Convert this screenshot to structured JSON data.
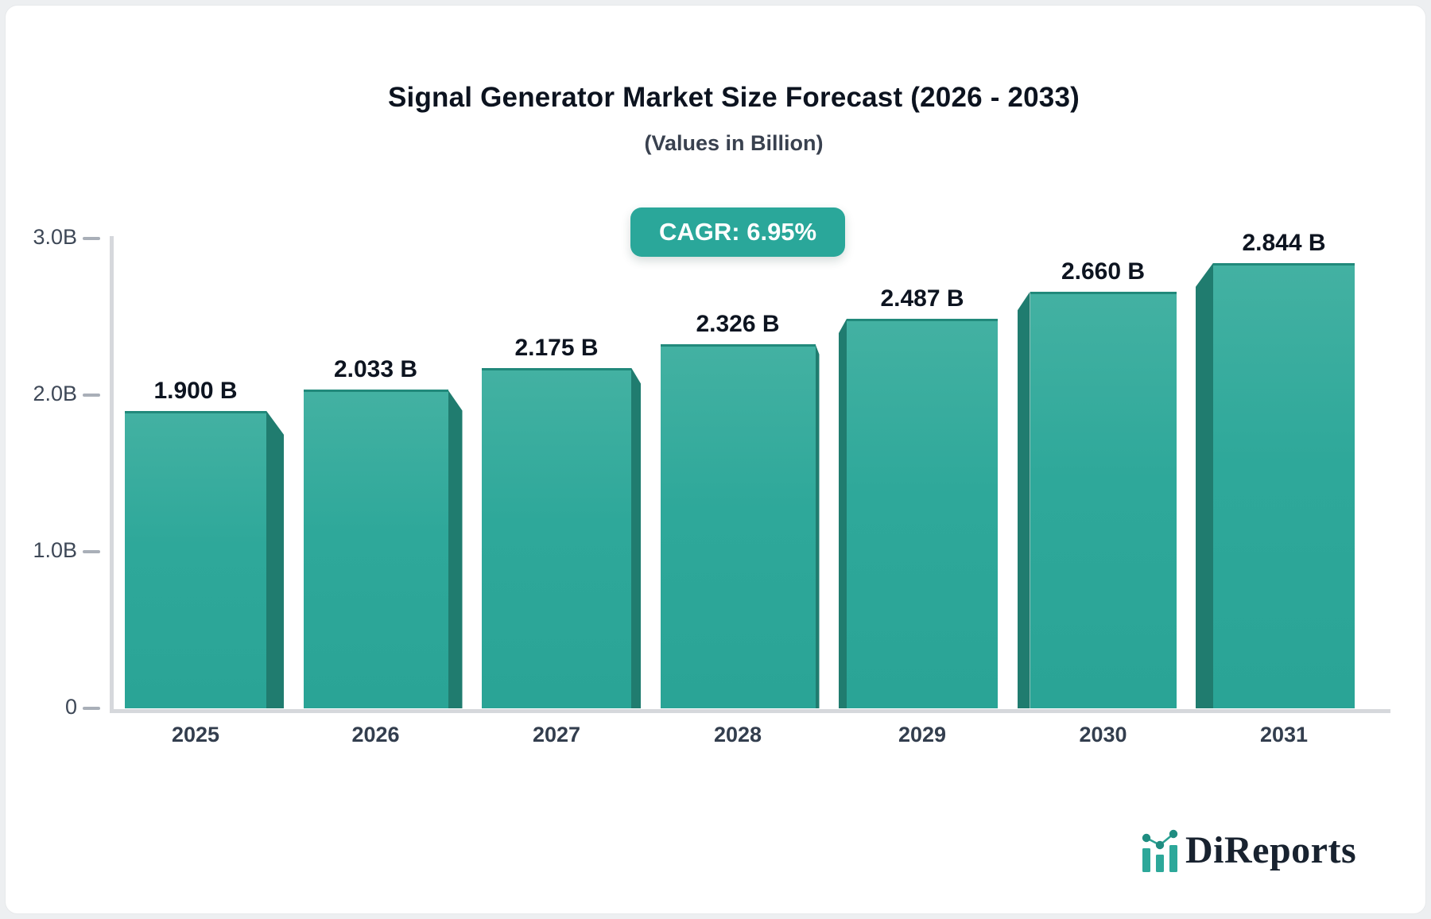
{
  "header": {
    "title": "Signal Generator Market Size Forecast (2026 - 2033)",
    "subtitle": "(Values in Billion)",
    "cagr_badge": "CAGR: 6.95%"
  },
  "chart_data": {
    "type": "bar",
    "title": "Signal Generator Market Size Forecast (2026 - 2033)",
    "subtitle": "(Values in Billion)",
    "annotation": "CAGR: 6.95%",
    "categories": [
      "2025",
      "2026",
      "2027",
      "2028",
      "2029",
      "2030",
      "2031"
    ],
    "values": [
      1.9,
      2.033,
      2.175,
      2.326,
      2.487,
      2.66,
      2.844
    ],
    "value_labels": [
      "1.900 B",
      "2.033 B",
      "2.175 B",
      "2.326 B",
      "2.487 B",
      "2.660 B",
      "2.844 B"
    ],
    "unit": "Billion",
    "ylim": [
      0,
      3.0
    ],
    "yticks": [
      {
        "value": 0,
        "label": "0"
      },
      {
        "value": 1.0,
        "label": "1.0B"
      },
      {
        "value": 2.0,
        "label": "2.0B"
      },
      {
        "value": 3.0,
        "label": "3.0B"
      }
    ],
    "grid": false,
    "legend": false,
    "colors": {
      "bar_fill_top": "#43b1a2",
      "bar_fill_bottom": "#2aa496",
      "bar_side_face": "#207c6f",
      "badge_background": "#2aa79a",
      "axis_line": "#d6d8dc",
      "value_label_text": "#0d1420"
    }
  },
  "footer": {
    "logo_text": "DiReports"
  }
}
